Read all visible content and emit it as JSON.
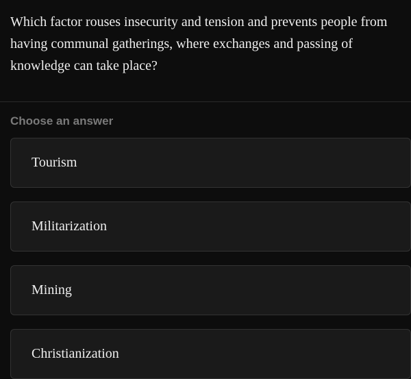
{
  "question": {
    "text": "Which factor rouses insecurity and tension and prevents people from having communal gatherings, where exchanges and passing of knowledge can take place?"
  },
  "prompt": "Choose an answer",
  "answers": [
    {
      "label": "Tourism"
    },
    {
      "label": "Militarization"
    },
    {
      "label": "Mining"
    },
    {
      "label": "Christianization"
    }
  ],
  "colors": {
    "background": "#0d0d0d",
    "text": "#eeeeee",
    "prompt": "#7a7a7a",
    "option_bg": "#1a1a1a",
    "option_border": "#333333"
  }
}
